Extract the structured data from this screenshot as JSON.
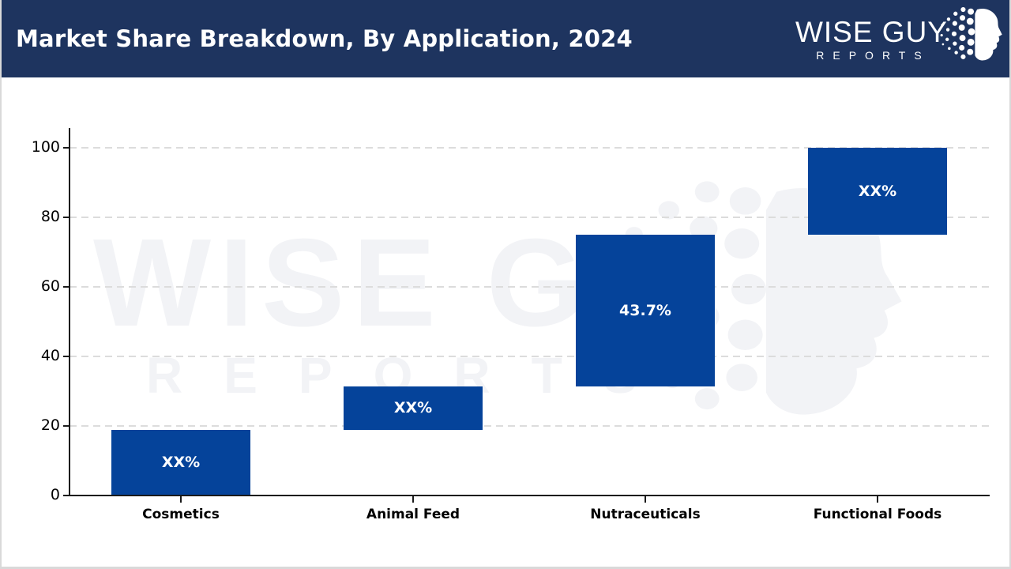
{
  "header": {
    "title": "Market Share Breakdown, By Application, 2024",
    "logo": {
      "name": "WISE GUY",
      "sub": "REPORTS"
    }
  },
  "watermark": {
    "line1": "WISE GU",
    "line2": "REPORTS"
  },
  "chart_data": {
    "type": "bar",
    "subtype": "floating-waterfall",
    "title": "Market Share Breakdown, By Application, 2024",
    "categories": [
      "Cosmetics",
      "Animal Feed",
      "Nutraceuticals",
      "Functional Foods"
    ],
    "bars": [
      {
        "category": "Cosmetics",
        "start": 0,
        "end": 18.8,
        "size": 18.8,
        "label": "XX%"
      },
      {
        "category": "Animal Feed",
        "start": 18.8,
        "end": 31.3,
        "size": 12.5,
        "label": "XX%"
      },
      {
        "category": "Nutraceuticals",
        "start": 31.3,
        "end": 75.0,
        "size": 43.7,
        "label": "43.7%"
      },
      {
        "category": "Functional Foods",
        "start": 75.0,
        "end": 100.0,
        "size": 25.0,
        "label": "XX%"
      }
    ],
    "yticks": [
      0,
      20,
      40,
      60,
      80,
      100
    ],
    "ylim": [
      0,
      105.7
    ],
    "xlabel": "",
    "ylabel": "",
    "grid": "horizontal-dashed",
    "legend": "none",
    "bar_color": "#05439a",
    "bar_label_color": "#ffffff"
  },
  "colors": {
    "header_bg": "#1e345f",
    "bar": "#05439a",
    "grid": "#dcdcdc",
    "axis": "#1a1a1a",
    "watermark": "#f2f3f6",
    "frame_border": "#d9d9d9"
  }
}
